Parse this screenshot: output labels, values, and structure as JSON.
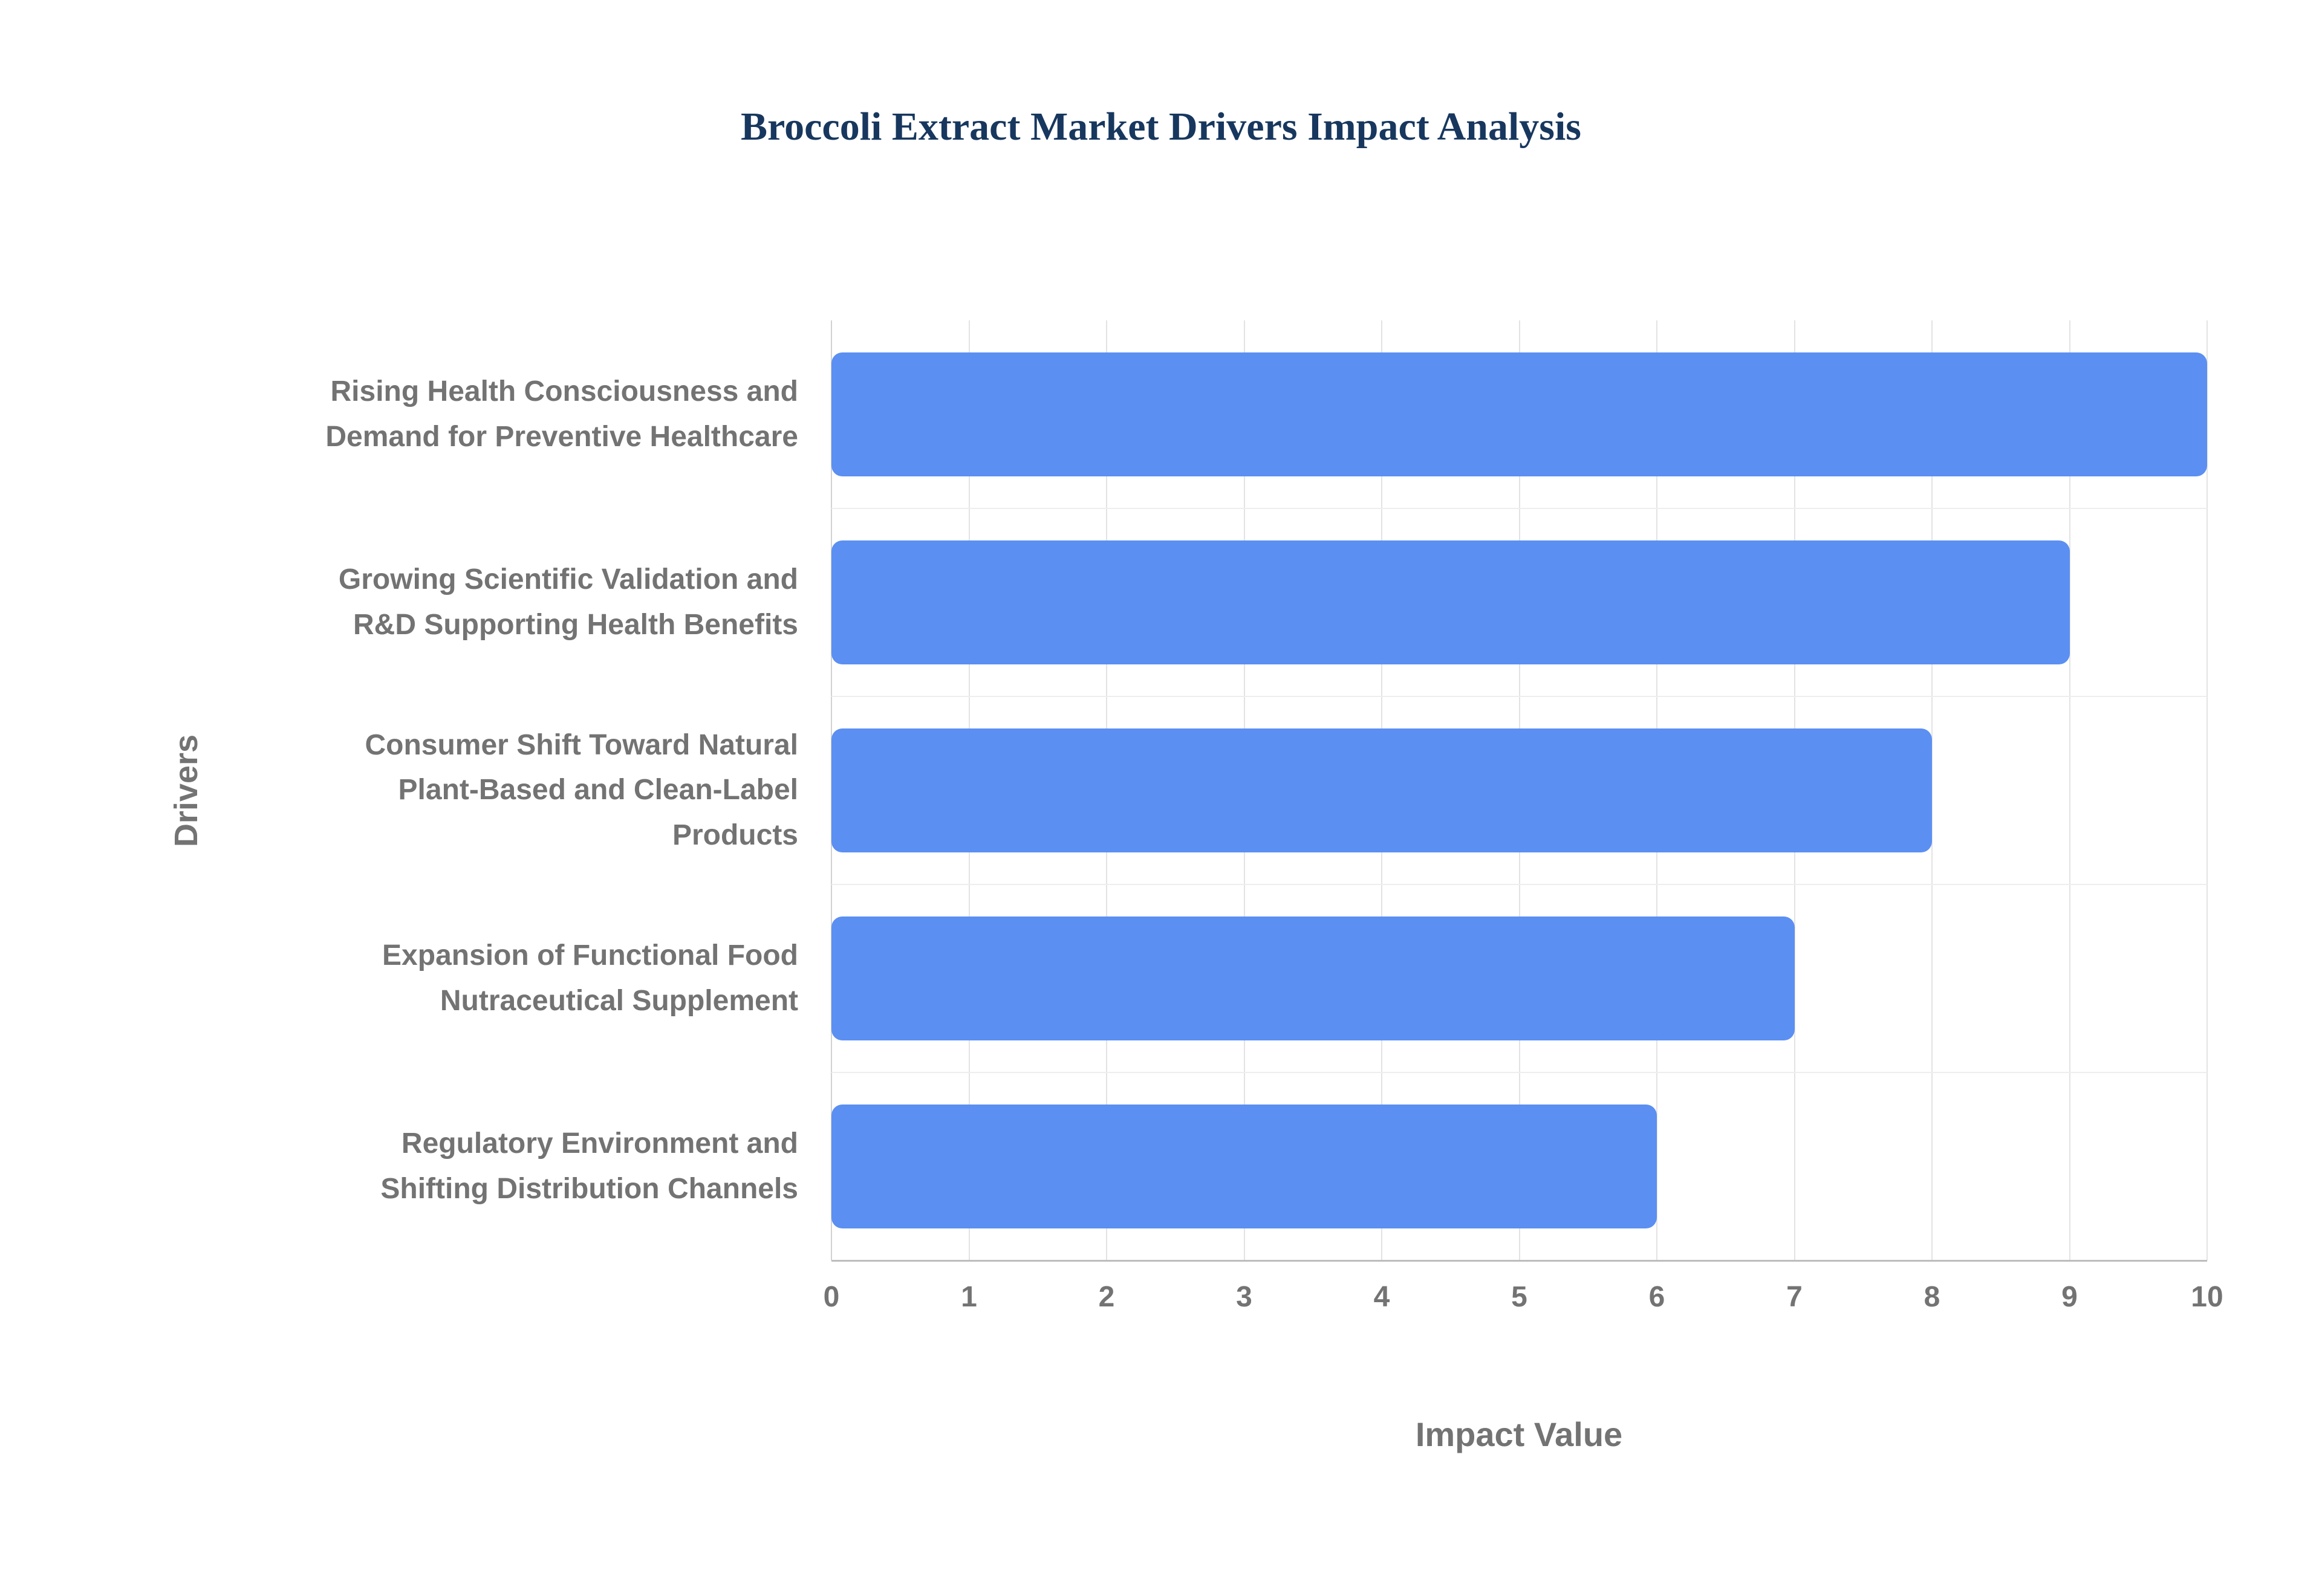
{
  "chart_data": {
    "type": "bar",
    "orientation": "horizontal",
    "title": "Broccoli Extract Market Drivers Impact Analysis",
    "categories": [
      "Rising Health Consciousness and Demand for Preventive Healthcare",
      "Growing Scientific Validation and R&D Supporting Health Benefits",
      "Consumer Shift Toward Natural Plant-Based and Clean-Label Products",
      "Expansion of Functional Food Nutraceutical Supplement",
      "Regulatory Environment and Shifting Distribution Channels"
    ],
    "values": [
      10,
      9,
      8,
      7,
      6
    ],
    "xlabel": "Impact Value",
    "ylabel": "Drivers",
    "xlim": [
      0,
      10
    ],
    "xticks": [
      0,
      1,
      2,
      3,
      4,
      5,
      6,
      7,
      8,
      9,
      10
    ],
    "bar_color": "#5b8ff2",
    "grid": true,
    "legend": false,
    "colors": {
      "title": "#17375e",
      "axis_text": "#737373",
      "gridline": "#e3e3e3",
      "background": "#ffffff"
    }
  }
}
